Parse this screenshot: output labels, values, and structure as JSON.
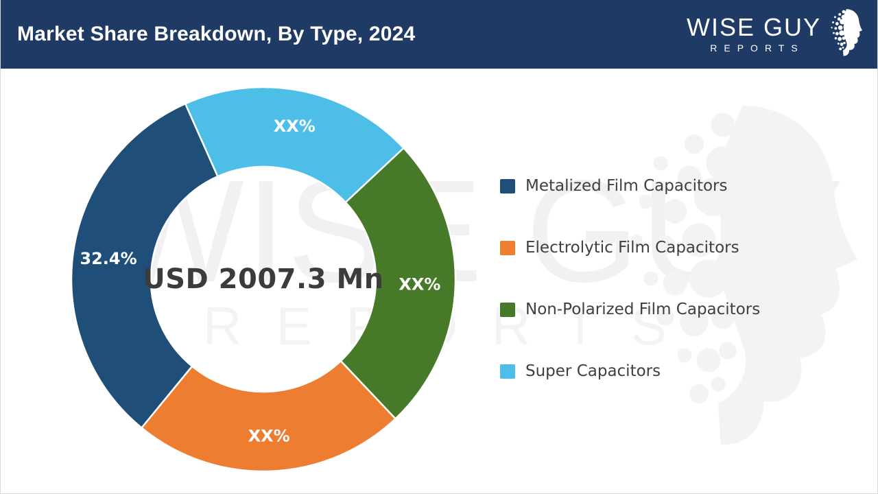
{
  "header": {
    "title": "Market Share Breakdown, By Type, 2024",
    "logo": {
      "line1": "WISE GUY",
      "line2": "REPORTS"
    }
  },
  "watermark": {
    "line1": "WISE GUY",
    "line2": "REPORTS"
  },
  "colors": {
    "header_bg": "#203A66",
    "legend_text": "#3f3f3f",
    "center_text": "#3b3b3b",
    "segment_gap": "#ffffff"
  },
  "chart_data": {
    "type": "pie",
    "subtype": "donut",
    "title": "Market Share Breakdown, By Type, 2024",
    "center_label": "USD 2007.3 Mn",
    "start_angle_deg": 114,
    "clockwise": true,
    "inner_radius_ratio": 0.586,
    "legend_position": "right",
    "segments": [
      {
        "name": "Super Capacitors",
        "display_label": "XX%",
        "percent_est": 19.7,
        "color": "#4DBEE8"
      },
      {
        "name": "Non-Polarized Film Capacitors",
        "display_label": "XX%",
        "percent_est": 24.9,
        "color": "#467A28"
      },
      {
        "name": "Electrolytic Film Capacitors",
        "display_label": "XX%",
        "percent_est": 23.0,
        "color": "#ED7D31"
      },
      {
        "name": "Metalized Film Capacitors",
        "display_label": "32.4%",
        "percent_est": 32.4,
        "color": "#1F4E79"
      }
    ],
    "legend": [
      {
        "label": "Metalized Film Capacitors",
        "color": "#1F4E79"
      },
      {
        "label": "Electrolytic Film Capacitors",
        "color": "#ED7D31"
      },
      {
        "label": "Non-Polarized Film Capacitors",
        "color": "#467A28"
      },
      {
        "label": "Super Capacitors",
        "color": "#4DBEE8"
      }
    ]
  }
}
